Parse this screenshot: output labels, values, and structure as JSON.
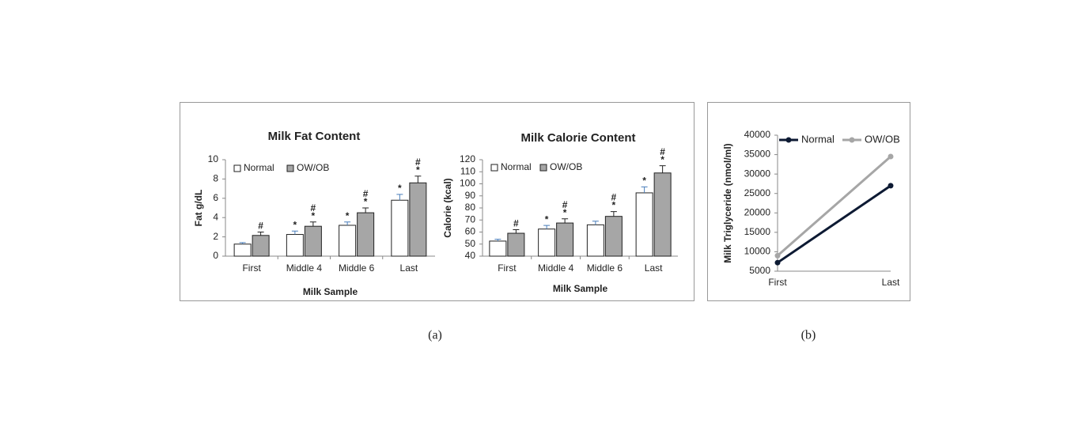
{
  "panel_labels": [
    "(a)",
    "(b)"
  ],
  "chart_data": [
    {
      "type": "bar",
      "title": "Milk Fat Content",
      "y_label": "Fat g/dL",
      "x_label": "Milk Sample",
      "categories": [
        "First",
        "Middle 4",
        "Middle 6",
        "Last"
      ],
      "ylim": [
        0,
        10
      ],
      "yticks": [
        0,
        2,
        4,
        6,
        8,
        10
      ],
      "series": [
        {
          "name": "Normal",
          "color": "#ffffff",
          "values": [
            1.25,
            2.25,
            3.2,
            5.8
          ],
          "errors": [
            0.15,
            0.35,
            0.35,
            0.6
          ],
          "annotations": [
            null,
            [
              "*"
            ],
            [
              "*"
            ],
            [
              "*"
            ]
          ]
        },
        {
          "name": "OW/OB",
          "color": "#a6a6a6",
          "values": [
            2.15,
            3.1,
            4.5,
            7.6
          ],
          "errors": [
            0.35,
            0.45,
            0.5,
            0.7
          ],
          "annotations": [
            [
              "#"
            ],
            [
              "#",
              "*"
            ],
            [
              "#",
              "*"
            ],
            [
              "#",
              "*"
            ]
          ]
        }
      ]
    },
    {
      "type": "bar",
      "title": "Milk Calorie Content",
      "y_label": "Calorie (kcal)",
      "x_label": "Milk Sample",
      "categories": [
        "First",
        "Middle 4",
        "Middle 6",
        "Last"
      ],
      "ylim": [
        40,
        120
      ],
      "yticks": [
        40,
        50,
        60,
        70,
        80,
        90,
        100,
        110,
        120
      ],
      "series": [
        {
          "name": "Normal",
          "color": "#ffffff",
          "values": [
            52.5,
            62.5,
            66,
            92.5
          ],
          "errors": [
            1.5,
            3,
            3,
            5
          ],
          "annotations": [
            null,
            [
              "*"
            ],
            null,
            [
              "*"
            ]
          ]
        },
        {
          "name": "OW/OB",
          "color": "#a6a6a6",
          "values": [
            59,
            67.5,
            73,
            109
          ],
          "errors": [
            3,
            3.5,
            4,
            6
          ],
          "annotations": [
            [
              "#"
            ],
            [
              "#",
              "*"
            ],
            [
              "#",
              "*"
            ],
            [
              "#",
              "*"
            ]
          ]
        }
      ]
    },
    {
      "type": "line",
      "y_label": "Milk Triglyceride (nmol/ml)",
      "categories": [
        "First",
        "Last"
      ],
      "ylim": [
        5000,
        40000
      ],
      "yticks": [
        5000,
        10000,
        15000,
        20000,
        25000,
        30000,
        35000,
        40000
      ],
      "series": [
        {
          "name": "Normal",
          "color": "#0d1a33",
          "values": [
            7200,
            27000
          ]
        },
        {
          "name": "OW/OB",
          "color": "#a6a6a6",
          "values": [
            9000,
            34500
          ]
        }
      ]
    }
  ]
}
